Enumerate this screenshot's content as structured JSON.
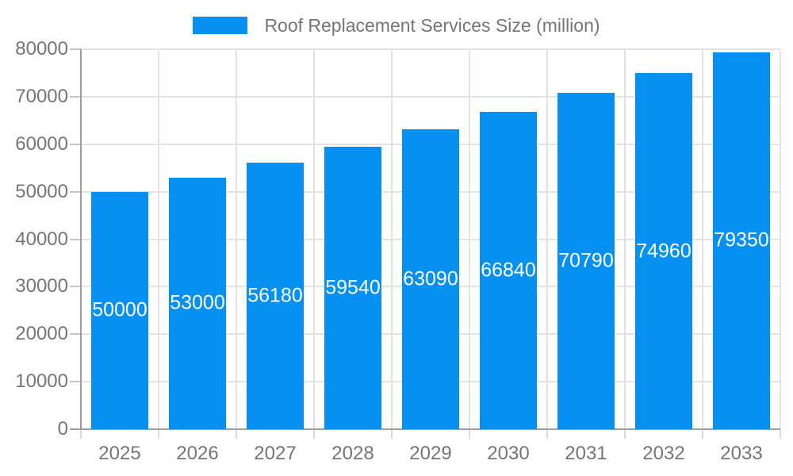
{
  "chart_data": {
    "type": "bar",
    "title": "Roof Replacement Services Size (million)",
    "legend": {
      "position": "top",
      "entries": [
        "Roof Replacement Services Size (million)"
      ]
    },
    "categories": [
      "2025",
      "2026",
      "2027",
      "2028",
      "2029",
      "2030",
      "2031",
      "2032",
      "2033"
    ],
    "series": [
      {
        "name": "Roof Replacement Services Size (million)",
        "values": [
          50000,
          53000,
          56180,
          59540,
          63090,
          66840,
          70790,
          74960,
          79350
        ]
      }
    ],
    "data_labels": [
      "50000",
      "53000",
      "56180",
      "59540",
      "63090",
      "66840",
      "70790",
      "74960",
      "79350"
    ],
    "xlabel": "",
    "ylabel": "",
    "ylim": [
      0,
      80000
    ],
    "y_ticks": [
      0,
      10000,
      20000,
      30000,
      40000,
      50000,
      60000,
      70000,
      80000
    ],
    "grid": true,
    "colors": {
      "bar": "#0691f2",
      "bar_label_text": "#ffffff",
      "axis_text": "#757575",
      "axis_line": "#9e9e9e",
      "gridline": "#e3e3e3",
      "background": "#ffffff"
    }
  }
}
